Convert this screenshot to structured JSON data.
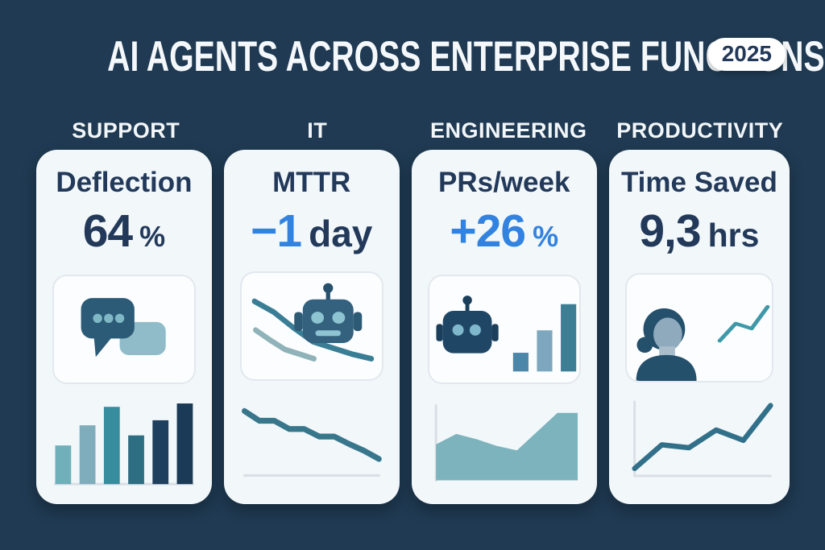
{
  "title": "AI AGENTS ACROSS ENTERPRISE FUNCTIONS",
  "badge": "2025",
  "colors": {
    "bg": "#1f3a52",
    "card": "#f2f7fa",
    "card-inner": "#fbfdfe",
    "inner-border": "#e2e8ee",
    "navy": "#22395a",
    "accent": "#3282e0",
    "teal": "#38768c",
    "teal-light": "#7cb3bd",
    "axis": "#d9dfe5"
  },
  "columns": [
    {
      "header": "SUPPORT",
      "metric_label": "Deflection",
      "value": "64",
      "unit": "%",
      "icon": "chat-bubbles"
    },
    {
      "header": "IT",
      "metric_label": "MTTR",
      "value": "−1",
      "unit": "day",
      "icon": "robot"
    },
    {
      "header": "ENGINEERING",
      "metric_label": "PRs/week",
      "value": "+26",
      "unit": "%",
      "icon": "robot"
    },
    {
      "header": "PRODUCTIVITY",
      "metric_label": "Time Saved",
      "value": "9,3",
      "unit": "hrs",
      "icon": "person"
    }
  ],
  "chart_data": [
    {
      "id": "support-bars",
      "type": "bar",
      "title": "Support deflection trend (decorative, unlabeled axes)",
      "categories": [
        "",
        "",
        "",
        "",
        "",
        ""
      ],
      "values": [
        46,
        70,
        92,
        58,
        76,
        96
      ],
      "colors": [
        "#6fb0ba",
        "#7fadbc",
        "#378d9e",
        "#2d6e83",
        "#1e3f5e",
        "#1b3a57"
      ],
      "ylim": [
        0,
        100
      ],
      "axes": [
        "baseline"
      ],
      "gap": 11,
      "pad": [
        10,
        8,
        10,
        10
      ]
    },
    {
      "id": "it-icon-trends",
      "type": "line",
      "title": "MTTR downward trend lines inside IT icon box (decorative)",
      "ylim": [
        0,
        100
      ],
      "pad": [
        10,
        14,
        10,
        14
      ],
      "series": [
        {
          "name": "mttr-trend-dark",
          "values": [
            82,
            68,
            48,
            30,
            22,
            14,
            8
          ],
          "color": "#3a7e96",
          "width": 7,
          "span": [
            0.02,
            1.0
          ]
        },
        {
          "name": "mttr-trend-light",
          "values": [
            45,
            32,
            20,
            14,
            8
          ],
          "color": "#8fb3b8",
          "width": 7,
          "span": [
            0.03,
            0.52
          ]
        }
      ]
    },
    {
      "id": "it-step-line",
      "type": "line",
      "title": "MTTR stepped decline (unlabeled)",
      "values": [
        86,
        73,
        73,
        62,
        62,
        52,
        52,
        42,
        33,
        22
      ],
      "color": "#38768c",
      "width": 7,
      "ylim": [
        0,
        100
      ],
      "axes": [
        "baseline"
      ],
      "pad": [
        12,
        12,
        12,
        16
      ]
    },
    {
      "id": "eng-icon-bars",
      "type": "bar",
      "title": "PR growth mini bars inside engineering icon box (decorative)",
      "values": [
        25,
        55,
        90
      ],
      "colors": [
        "#4c86a8",
        "#7da7be",
        "#3d7e95"
      ],
      "ylim": [
        0,
        100
      ],
      "gap": 11,
      "pad": [
        4,
        8,
        4,
        4
      ]
    },
    {
      "id": "eng-area",
      "type": "area",
      "title": "PRs/week area chart rising to plateau (unlabeled)",
      "values": [
        48,
        62,
        55,
        46,
        40,
        65,
        90,
        90
      ],
      "color": "#7cb3bd",
      "ylim": [
        0,
        100
      ],
      "axes": [
        "left"
      ],
      "pad": [
        16,
        14,
        10,
        14
      ]
    },
    {
      "id": "prod-icon-zigzag",
      "type": "line",
      "title": "Time saved mini upward zigzag inside productivity icon box (decorative)",
      "values": [
        20,
        58,
        47,
        95
      ],
      "color": "#3f98a8",
      "width": 6,
      "ylim": [
        0,
        100
      ],
      "pad": [
        6,
        10,
        6,
        12
      ]
    },
    {
      "id": "prod-line",
      "type": "line",
      "title": "Time saved rising line chart (unlabeled)",
      "values": [
        10,
        42,
        38,
        62,
        48,
        95
      ],
      "color": "#32708a",
      "width": 6.5,
      "ylim": [
        0,
        100
      ],
      "axes": [
        "left",
        "bottom"
      ],
      "pad": [
        18,
        12,
        10,
        18
      ]
    }
  ]
}
